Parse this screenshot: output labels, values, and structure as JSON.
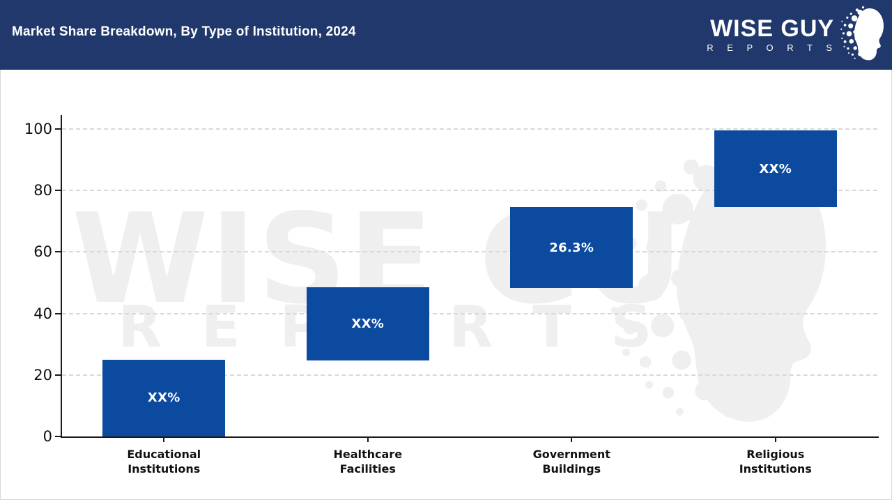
{
  "header": {
    "title": "Market Share Breakdown, By Type of Institution, 2024",
    "logo": {
      "line1": "WISE GUY",
      "line2": "R E P O R T S",
      "face_icon": "dotted-head-profile-icon"
    }
  },
  "watermark": {
    "line1": "WISE GUY",
    "line2": "R E P O R T S",
    "face_icon": "dotted-head-profile-icon"
  },
  "colors": {
    "header_background": "#20386B",
    "header_text": "#FFFFFF",
    "bar_fill": "#0B4A9F",
    "bar_label_text": "#FFFFFF",
    "axis": "#1A1A1A",
    "tick_label_text": "#111111",
    "gridline": "#D8D8D8",
    "figure_border": "#D9D9D9",
    "watermark_gray": "#EFEFEF",
    "background": "#FFFFFF"
  },
  "chart_data": {
    "type": "bar",
    "subtype": "floating-waterfall",
    "title": "Market Share Breakdown, By Type of Institution, 2024",
    "xlabel": "",
    "ylabel": "",
    "ylim": [
      0,
      104.5
    ],
    "yticks": [
      0,
      20,
      40,
      60,
      80,
      100
    ],
    "grid": "horizontal-dashed",
    "legend_position": "none",
    "categories": [
      {
        "line1": "Educational",
        "line2": "Institutions"
      },
      {
        "line1": "Healthcare",
        "line2": "Facilities"
      },
      {
        "line1": "Government",
        "line2": "Buildings"
      },
      {
        "line1": "Religious",
        "line2": "Institutions"
      }
    ],
    "segments": [
      {
        "category": "Educational Institutions",
        "start": 0,
        "end": 25,
        "label": "XX%"
      },
      {
        "category": "Healthcare Facilities",
        "start": 24.7,
        "end": 48.5,
        "label": "XX%"
      },
      {
        "category": "Government Buildings",
        "start": 48.2,
        "end": 74.5,
        "label": "26.3%"
      },
      {
        "category": "Religious Institutions",
        "start": 74.6,
        "end": 99.5,
        "label": "XX%"
      }
    ]
  }
}
